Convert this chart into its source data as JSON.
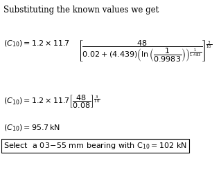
{
  "title": "Substituting the known values we get",
  "eq1a": "$(C_{10}) = 1.2\\times11.7$",
  "eq2": "$(C_{10}) = 1.2\\times11.7\\left[\\dfrac{48}{0.08}\\right]^{\\frac{3}{10}}$",
  "eq3": "$(C_{10}) = 95.7\\,\\mathrm{kN}$",
  "eq4": "$\\mathrm{Select\\ \\ a\\ 03\\!-\\!55\\ mm\\ bearing\\ with\\ C_{10}=102\\ kN}$",
  "bg_color": "#ffffff",
  "text_color": "#000000",
  "title_fontsize": 8.5,
  "eq_fontsize": 8.0
}
